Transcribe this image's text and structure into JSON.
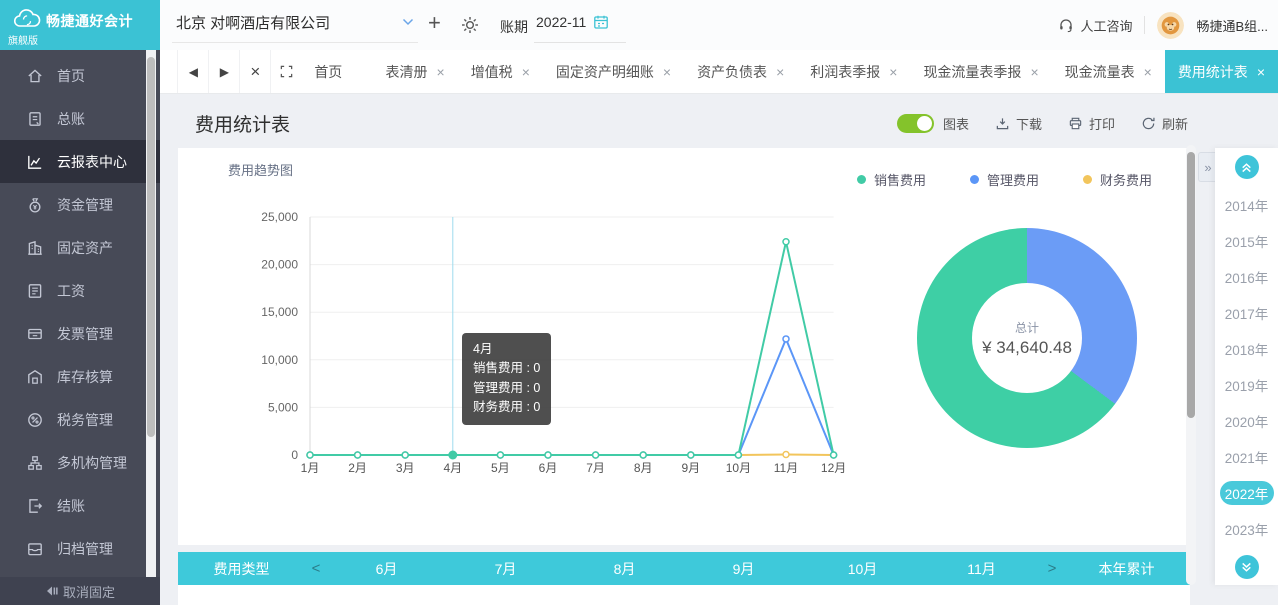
{
  "brand": {
    "name": "畅捷通好会计",
    "edition": "旗舰版"
  },
  "topbar": {
    "company": "北京 对啊酒店有限公司",
    "period_label": "账期",
    "period_value": "2022-11",
    "support_label": "人工咨询",
    "user_name": "畅捷通B组..."
  },
  "glyphs": {
    "tab_prev": "◀",
    "tab_next": "▶",
    "close": "×",
    "collapse": "»",
    "plus": "+"
  },
  "tabs": {
    "items": [
      {
        "label": "首页",
        "closable": false
      },
      {
        "label": "表清册",
        "closable": true
      },
      {
        "label": "增值税",
        "closable": true
      },
      {
        "label": "固定资产明细账",
        "closable": true
      },
      {
        "label": "资产负债表",
        "closable": true
      },
      {
        "label": "利润表季报",
        "closable": true
      },
      {
        "label": "现金流量表季报",
        "closable": true
      },
      {
        "label": "现金流量表",
        "closable": true
      },
      {
        "label": "费用统计表",
        "closable": true,
        "active": true
      }
    ]
  },
  "sidebar": {
    "items": [
      {
        "label": "首页",
        "icon": "home"
      },
      {
        "label": "总账",
        "icon": "ledger"
      },
      {
        "label": "云报表中心",
        "icon": "report",
        "active": true
      },
      {
        "label": "资金管理",
        "icon": "fund"
      },
      {
        "label": "固定资产",
        "icon": "asset"
      },
      {
        "label": "工资",
        "icon": "salary"
      },
      {
        "label": "发票管理",
        "icon": "invoice"
      },
      {
        "label": "库存核算",
        "icon": "inventory"
      },
      {
        "label": "税务管理",
        "icon": "tax"
      },
      {
        "label": "多机构管理",
        "icon": "org"
      },
      {
        "label": "结账",
        "icon": "settle"
      },
      {
        "label": "归档管理",
        "icon": "archive"
      }
    ],
    "unpin_label": "取消固定"
  },
  "page": {
    "title": "费用统计表",
    "chart_toggle_label": "图表",
    "download_label": "下载",
    "print_label": "打印",
    "refresh_label": "刷新"
  },
  "chart_data": [
    {
      "type": "line",
      "title": "费用趋势图",
      "categories": [
        "1月",
        "2月",
        "3月",
        "4月",
        "5月",
        "6月",
        "7月",
        "8月",
        "9月",
        "10月",
        "11月",
        "12月"
      ],
      "series": [
        {
          "name": "销售费用",
          "color": "#41cba6",
          "values": [
            0,
            0,
            0,
            0,
            0,
            0,
            0,
            0,
            0,
            0,
            22400,
            0
          ]
        },
        {
          "name": "管理费用",
          "color": "#5b96f7",
          "values": [
            0,
            0,
            0,
            0,
            0,
            0,
            0,
            0,
            0,
            0,
            12190,
            0
          ]
        },
        {
          "name": "财务费用",
          "color": "#f2c55c",
          "values": [
            0,
            0,
            0,
            0,
            0,
            0,
            0,
            0,
            0,
            0,
            50,
            0
          ]
        }
      ],
      "ylim": [
        0,
        25000
      ],
      "yticks": [
        0,
        5000,
        10000,
        15000,
        20000,
        25000
      ],
      "ytick_labels": [
        "0",
        "5,000",
        "10,000",
        "15,000",
        "20,000",
        "25,000"
      ],
      "grid": true,
      "legend_position": "top-right",
      "hover_index": 3
    },
    {
      "type": "donut",
      "total_label": "总计",
      "total_text": "¥ 34,640.48",
      "total_value": 34640.48,
      "segments": [
        {
          "name": "管理费用",
          "value": 12196.82,
          "color": "#6b9cf6"
        },
        {
          "name": "销售费用",
          "value": 22443.66,
          "color": "#3ecfa5"
        }
      ],
      "start_angle_deg": 0
    }
  ],
  "tooltip": {
    "title": "4月",
    "rows": [
      "销售费用 : 0",
      "管理费用 : 0",
      "财务费用 : 0"
    ]
  },
  "bottom_bar": {
    "first_col": "费用类型",
    "prev_icon": "<",
    "months": [
      "6月",
      "7月",
      "8月",
      "9月",
      "10月",
      "11月"
    ],
    "next_icon": ">",
    "last_col": "本年累计"
  },
  "year_panel": {
    "years": [
      "2014年",
      "2015年",
      "2016年",
      "2017年",
      "2018年",
      "2019年",
      "2020年",
      "2021年",
      "2022年",
      "2023年"
    ],
    "selected": "2022年"
  },
  "colors": {
    "brand_teal": "#3bc2d4",
    "bottom_bar_teal": "#3ec9da",
    "sidebar_bg": "#474a57",
    "sidebar_active_bg": "#2e303c",
    "toggle_green": "#84c32b"
  }
}
